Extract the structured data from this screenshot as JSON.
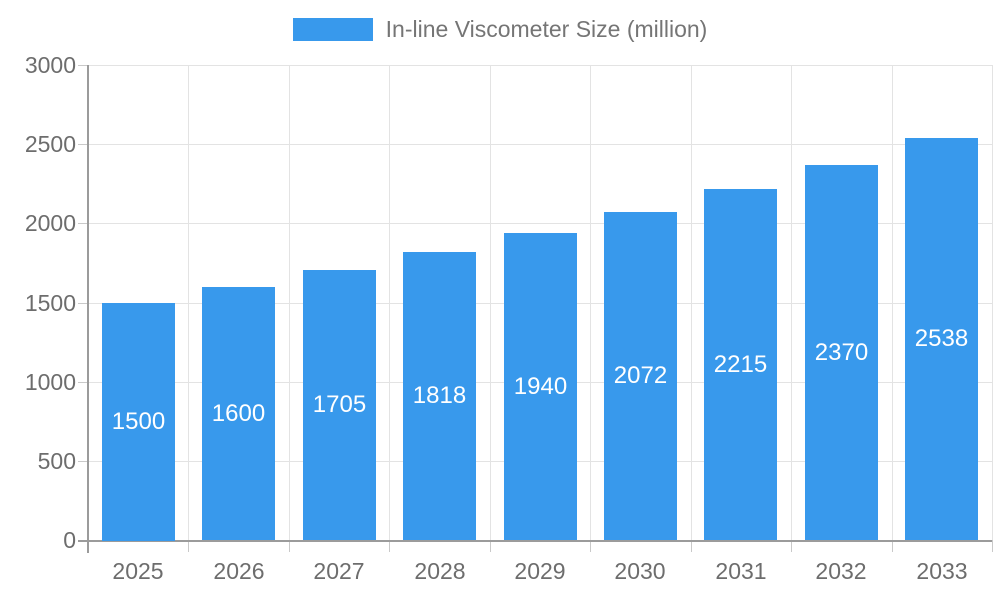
{
  "legend": {
    "label": "In-line Viscometer Size (million)"
  },
  "chart_data": {
    "type": "bar",
    "title": "",
    "xlabel": "",
    "ylabel": "",
    "categories": [
      "2025",
      "2026",
      "2027",
      "2028",
      "2029",
      "2030",
      "2031",
      "2032",
      "2033"
    ],
    "series": [
      {
        "name": "In-line Viscometer Size (million)",
        "values": [
          1500,
          1600,
          1705,
          1818,
          1940,
          2072,
          2215,
          2370,
          2538
        ]
      }
    ],
    "value_labels": [
      "1500",
      "1600",
      "1705",
      "1818",
      "1940",
      "2072",
      "2215",
      "2370",
      "2538"
    ],
    "ylim": [
      0,
      3000
    ],
    "yticks": [
      0,
      500,
      1000,
      1500,
      2000,
      2500,
      3000
    ],
    "grid": true,
    "legend_position": "top-center",
    "colors": {
      "bar": "#3899ec",
      "value_label": "#ffffff",
      "axis_line": "#9b9b9b",
      "gridline": "#e3e3e3",
      "tick": "#c9c9c9",
      "tick_label": "#6d6d6d",
      "legend_text": "#757575",
      "background": "#ffffff"
    }
  }
}
